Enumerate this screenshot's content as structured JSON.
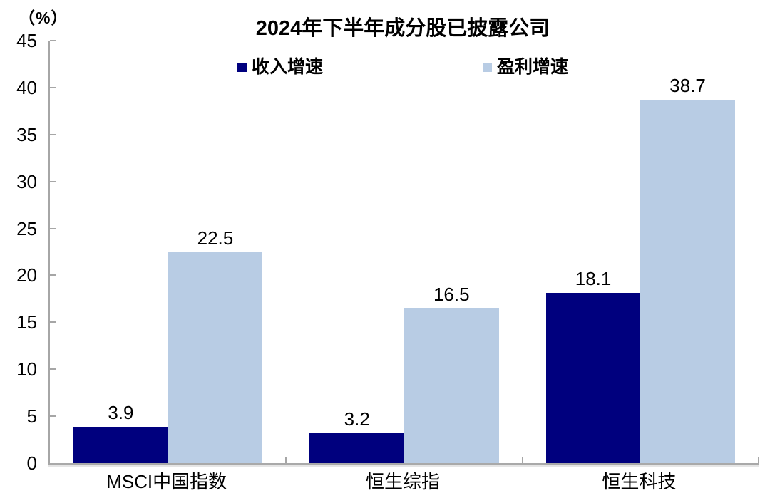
{
  "chart_data": {
    "type": "bar",
    "title": "2024年下半年成分股已披露公司",
    "unit_label": "（%）",
    "categories": [
      "MSCI中国指数",
      "恒生综指",
      "恒生科技"
    ],
    "series": [
      {
        "name": "收入增速",
        "color": "#00007E",
        "values": [
          3.9,
          3.2,
          18.1
        ]
      },
      {
        "name": "盈利增速",
        "color": "#B8CCE4",
        "values": [
          22.5,
          16.5,
          38.7
        ]
      }
    ],
    "ylim": [
      0,
      45
    ],
    "yticks": [
      0,
      5,
      10,
      15,
      20,
      25,
      30,
      35,
      40,
      45
    ],
    "xlabel": "",
    "ylabel": "（%）",
    "grid": false,
    "legend_position": "top",
    "value_labels": true
  },
  "colors": {
    "axis": "#A6A6A6",
    "text": "#000000",
    "background": "#FFFFFF"
  }
}
